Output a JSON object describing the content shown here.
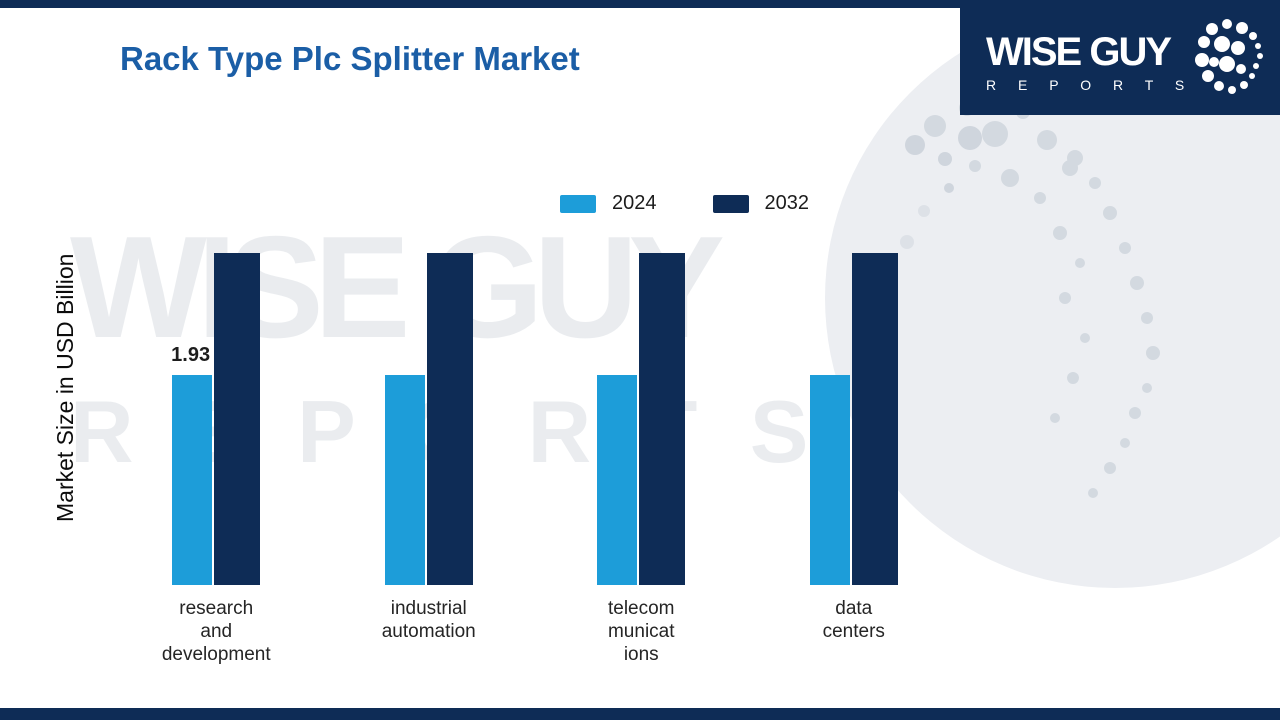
{
  "header": {
    "title": "Rack Type Plc Splitter Market"
  },
  "logo": {
    "brand_line1": "WISE GUY",
    "brand_line2": "R E P O R T S"
  },
  "watermark": {
    "line1": "WISE GUY",
    "line2": "R E P O R T S"
  },
  "chart_data": {
    "type": "bar",
    "title": "Rack Type Plc Splitter Market",
    "xlabel": "",
    "ylabel": "Market Size in USD Billion",
    "categories": [
      "research and development",
      "industrial automation",
      "telecommunications",
      "data centers"
    ],
    "category_label_lines": [
      [
        "research",
        "and",
        "development"
      ],
      [
        "industrial",
        "automation"
      ],
      [
        "telecom",
        "municat",
        "ions"
      ],
      [
        "data",
        "centers"
      ]
    ],
    "series": [
      {
        "name": "2024",
        "color": "#1d9dd9",
        "values": [
          1.93,
          1.93,
          1.93,
          1.93
        ]
      },
      {
        "name": "2032",
        "color": "#0e2c56",
        "values": [
          3.05,
          3.05,
          3.05,
          3.05
        ]
      }
    ],
    "data_labels": [
      {
        "series": "2024",
        "category_index": 0,
        "text": "1.93"
      }
    ],
    "legend_position": "top-center",
    "grid": false,
    "y_axis_ticks_visible": false
  },
  "colors": {
    "title": "#1b5ea6",
    "series_2024": "#1d9dd9",
    "series_2032": "#0e2c56",
    "accent_navy": "#0e2c56",
    "background": "#ffffff",
    "circle_gray": "#eceef2"
  }
}
